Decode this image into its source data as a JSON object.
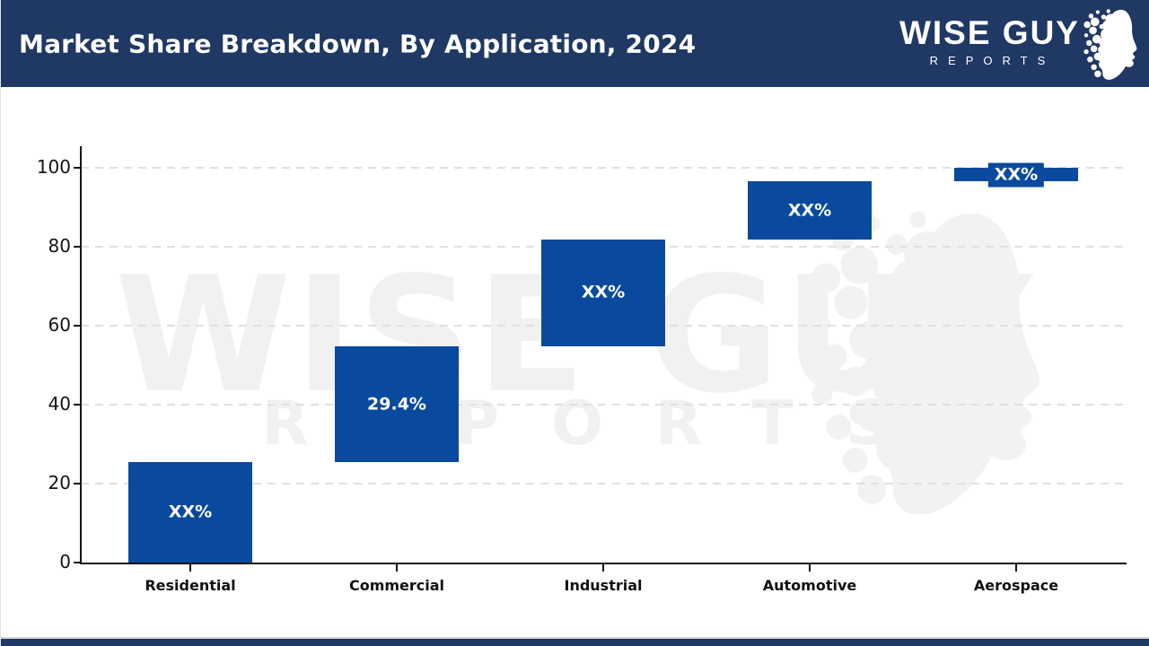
{
  "header": {
    "title": "Market Share Breakdown, By Application, 2024",
    "logo": {
      "line1": "WISE GUY",
      "line2": "REPORTS",
      "icon": "wiseguy-head-icon"
    }
  },
  "watermark": {
    "line1": "WISE GUY",
    "line2": "REPORTS",
    "icon": "wiseguy-head-icon"
  },
  "chart_data": {
    "type": "bar",
    "subtype": "waterfall-floating-bars",
    "title": "Market Share Breakdown, By Application, 2024",
    "categories": [
      "Residential",
      "Commercial",
      "Industrial",
      "Automotive",
      "Aerospace"
    ],
    "segments": [
      {
        "category": "Residential",
        "base": 0,
        "top": 25.4,
        "label": "XX%"
      },
      {
        "category": "Commercial",
        "base": 25.4,
        "top": 54.8,
        "label": "29.4%"
      },
      {
        "category": "Industrial",
        "base": 54.8,
        "top": 81.8,
        "label": "XX%"
      },
      {
        "category": "Automotive",
        "base": 81.8,
        "top": 96.5,
        "label": "XX%"
      },
      {
        "category": "Aerospace",
        "base": 96.5,
        "top": 100,
        "label": "XX%"
      }
    ],
    "yticks": [
      0,
      20,
      40,
      60,
      80,
      100
    ],
    "ylim": [
      0,
      105
    ],
    "grid": "horizontal-dashed",
    "legend": "none",
    "xlabel": "",
    "ylabel": ""
  },
  "colors": {
    "header_navy": "#1f3864",
    "bar_blue": "#0a4a9e",
    "gridline": "#e0e0e0",
    "bar_label_text": "#ffffff",
    "watermark": "#f1f1f1"
  }
}
